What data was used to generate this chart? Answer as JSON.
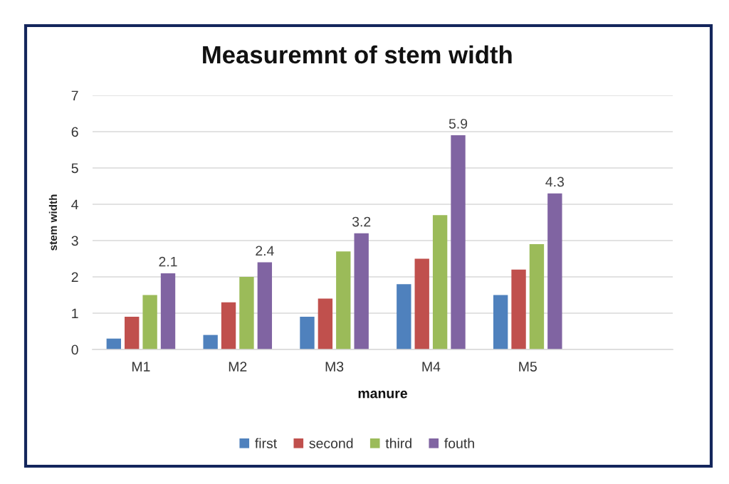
{
  "chart_data": {
    "type": "bar",
    "title": "Measuremnt of stem width",
    "xlabel": "manure",
    "ylabel": "stem width",
    "categories": [
      "M1",
      "M2",
      "M3",
      "M4",
      "M5",
      null
    ],
    "series": [
      {
        "name": "first",
        "color": "#4f81bd",
        "values": [
          0.3,
          0.4,
          0.9,
          1.8,
          1.5,
          null
        ]
      },
      {
        "name": "second",
        "color": "#c0504d",
        "values": [
          0.9,
          1.3,
          1.4,
          2.5,
          2.2,
          null
        ]
      },
      {
        "name": "third",
        "color": "#9bbb59",
        "values": [
          1.5,
          2.0,
          2.7,
          3.7,
          2.9,
          null
        ]
      },
      {
        "name": "fouth",
        "color": "#8064a2",
        "values": [
          2.1,
          2.4,
          3.2,
          5.9,
          4.3,
          null
        ],
        "value_labels": [
          "2.1",
          "2.4",
          "3.2",
          "5.9",
          "4.3",
          null
        ]
      }
    ],
    "ylim": [
      0,
      7
    ],
    "yticks": [
      0,
      1,
      2,
      3,
      4,
      5,
      6,
      7
    ],
    "grid": "y",
    "legend": "bottom"
  }
}
